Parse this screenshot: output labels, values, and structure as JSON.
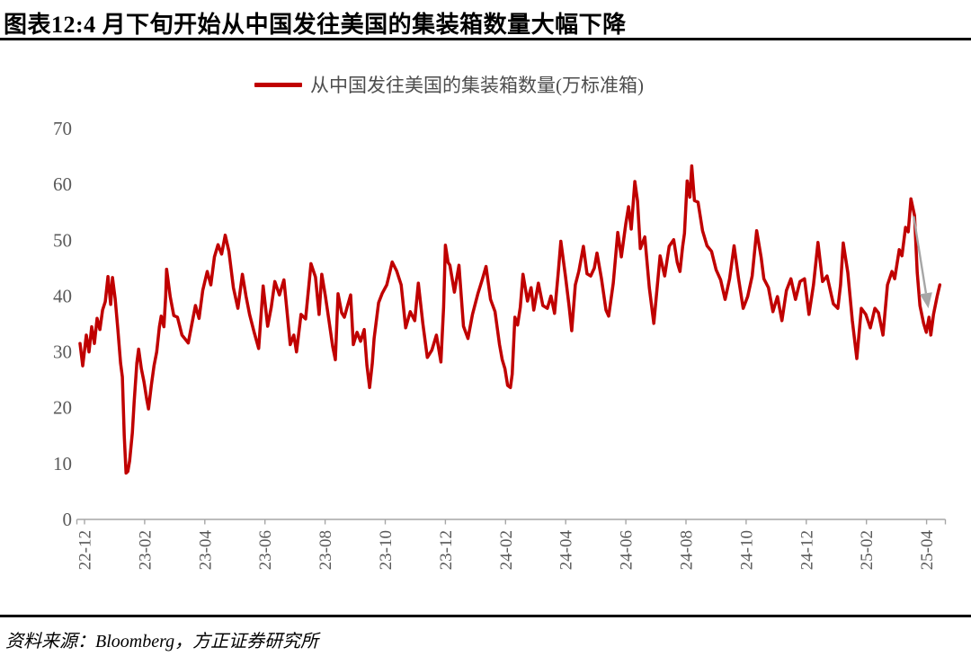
{
  "page": {
    "title": "图表12:4 月下旬开始从中国发往美国的集装箱数量大幅下降",
    "source_note": "资料来源：Bloomberg，方正证券研究所"
  },
  "legend": {
    "series_label": "从中国发往美国的集装箱数量(万标准箱)"
  },
  "colors": {
    "series_red": "#C00000",
    "arrow_gray": "#A6A6A6",
    "axis_line": "#A6A6A6",
    "tick_label": "#595959",
    "title_text": "#000000"
  },
  "chart_data": {
    "type": "line",
    "title": "从中国发往美国的集装箱数量(万标准箱)",
    "grid": false,
    "legend_position": "top-center",
    "x_axis": {
      "unit": "year-month",
      "months_per_tick": 2,
      "tick_labels": [
        "22-12",
        "23-02",
        "23-04",
        "23-06",
        "23-08",
        "23-10",
        "23-12",
        "24-02",
        "24-04",
        "24-06",
        "24-08",
        "24-10",
        "24-12",
        "25-02",
        "25-04"
      ]
    },
    "y_axis": {
      "ticks": [
        0,
        10,
        20,
        30,
        40,
        50,
        60,
        70
      ],
      "range": [
        0,
        70
      ]
    },
    "series": [
      {
        "name": "从中国发往美国的集装箱数量(万标准箱)",
        "color": "#C00000",
        "x_unit": "months_since_2022-12_tick",
        "points": [
          [
            -0.15,
            31.5
          ],
          [
            -0.06,
            27.5
          ],
          [
            0.06,
            33
          ],
          [
            0.15,
            30
          ],
          [
            0.24,
            34.5
          ],
          [
            0.33,
            31.5
          ],
          [
            0.42,
            36
          ],
          [
            0.51,
            34
          ],
          [
            0.6,
            37.5
          ],
          [
            0.69,
            39
          ],
          [
            0.78,
            43.5
          ],
          [
            0.87,
            38.5
          ],
          [
            0.93,
            43.3
          ],
          [
            1.02,
            39.5
          ],
          [
            1.11,
            34
          ],
          [
            1.2,
            28
          ],
          [
            1.26,
            25.5
          ],
          [
            1.32,
            15
          ],
          [
            1.38,
            8.3
          ],
          [
            1.44,
            8.6
          ],
          [
            1.5,
            10.5
          ],
          [
            1.59,
            15.5
          ],
          [
            1.65,
            21
          ],
          [
            1.74,
            28
          ],
          [
            1.8,
            30.5
          ],
          [
            1.89,
            27
          ],
          [
            1.98,
            24.6
          ],
          [
            2.07,
            21.5
          ],
          [
            2.13,
            19.8
          ],
          [
            2.22,
            24
          ],
          [
            2.31,
            27.5
          ],
          [
            2.4,
            30
          ],
          [
            2.49,
            34.5
          ],
          [
            2.55,
            36.4
          ],
          [
            2.64,
            34.5
          ],
          [
            2.7,
            40
          ],
          [
            2.73,
            44.8
          ],
          [
            2.85,
            39.9
          ],
          [
            2.97,
            36.5
          ],
          [
            3.09,
            36.2
          ],
          [
            3.24,
            33
          ],
          [
            3.45,
            31.6
          ],
          [
            3.57,
            35
          ],
          [
            3.69,
            38.3
          ],
          [
            3.81,
            36
          ],
          [
            3.93,
            41
          ],
          [
            4.08,
            44.4
          ],
          [
            4.2,
            42
          ],
          [
            4.32,
            47
          ],
          [
            4.44,
            49.2
          ],
          [
            4.56,
            47.5
          ],
          [
            4.68,
            50.9
          ],
          [
            4.8,
            48
          ],
          [
            4.95,
            41.5
          ],
          [
            5.1,
            37.8
          ],
          [
            5.25,
            43.9
          ],
          [
            5.37,
            40
          ],
          [
            5.49,
            36.7
          ],
          [
            5.64,
            33.5
          ],
          [
            5.79,
            30.6
          ],
          [
            5.94,
            41.8
          ],
          [
            6.09,
            34.6
          ],
          [
            6.21,
            38
          ],
          [
            6.33,
            42.6
          ],
          [
            6.48,
            40.2
          ],
          [
            6.63,
            42.9
          ],
          [
            6.72,
            38
          ],
          [
            6.84,
            31.3
          ],
          [
            6.96,
            33
          ],
          [
            7.05,
            30
          ],
          [
            7.2,
            36.7
          ],
          [
            7.35,
            35.9
          ],
          [
            7.53,
            45.8
          ],
          [
            7.68,
            43.4
          ],
          [
            7.8,
            36.7
          ],
          [
            7.89,
            43.9
          ],
          [
            8.01,
            40
          ],
          [
            8.13,
            35.6
          ],
          [
            8.25,
            31
          ],
          [
            8.34,
            28.6
          ],
          [
            8.43,
            40.4
          ],
          [
            8.55,
            37
          ],
          [
            8.64,
            36.2
          ],
          [
            8.76,
            38.5
          ],
          [
            8.85,
            40.2
          ],
          [
            8.94,
            31.3
          ],
          [
            9.06,
            33.5
          ],
          [
            9.18,
            31.9
          ],
          [
            9.3,
            34
          ],
          [
            9.39,
            27.6
          ],
          [
            9.48,
            23.6
          ],
          [
            9.57,
            28
          ],
          [
            9.63,
            32.4
          ],
          [
            9.78,
            38.8
          ],
          [
            9.9,
            40.5
          ],
          [
            10.05,
            42
          ],
          [
            10.14,
            44
          ],
          [
            10.23,
            46.1
          ],
          [
            10.38,
            44.5
          ],
          [
            10.53,
            42
          ],
          [
            10.68,
            34.3
          ],
          [
            10.83,
            37.2
          ],
          [
            10.98,
            35.6
          ],
          [
            11.1,
            42.3
          ],
          [
            11.25,
            35.1
          ],
          [
            11.4,
            29
          ],
          [
            11.55,
            30.3
          ],
          [
            11.7,
            33
          ],
          [
            11.85,
            28.2
          ],
          [
            11.94,
            38
          ],
          [
            12,
            49.1
          ],
          [
            12.09,
            46
          ],
          [
            12.15,
            45.5
          ],
          [
            12.3,
            40.7
          ],
          [
            12.45,
            45.5
          ],
          [
            12.6,
            34.6
          ],
          [
            12.75,
            32.4
          ],
          [
            12.9,
            36.7
          ],
          [
            13.08,
            40.4
          ],
          [
            13.23,
            43
          ],
          [
            13.35,
            45.3
          ],
          [
            13.5,
            39.4
          ],
          [
            13.65,
            37.2
          ],
          [
            13.8,
            31.3
          ],
          [
            13.89,
            28.6
          ],
          [
            13.98,
            27
          ],
          [
            14.07,
            24
          ],
          [
            14.16,
            23.6
          ],
          [
            14.22,
            26
          ],
          [
            14.31,
            36.2
          ],
          [
            14.4,
            34.8
          ],
          [
            14.49,
            38
          ],
          [
            14.58,
            43.9
          ],
          [
            14.73,
            39.1
          ],
          [
            14.85,
            41.5
          ],
          [
            14.94,
            37.5
          ],
          [
            15.09,
            42.3
          ],
          [
            15.24,
            38.3
          ],
          [
            15.39,
            37.8
          ],
          [
            15.51,
            40
          ],
          [
            15.63,
            36.9
          ],
          [
            15.75,
            44
          ],
          [
            15.84,
            49.8
          ],
          [
            15.99,
            43.6
          ],
          [
            16.11,
            38.3
          ],
          [
            16.2,
            33.8
          ],
          [
            16.32,
            42
          ],
          [
            16.44,
            44.5
          ],
          [
            16.59,
            48.9
          ],
          [
            16.71,
            44
          ],
          [
            16.83,
            43.6
          ],
          [
            16.95,
            45
          ],
          [
            17.04,
            47.7
          ],
          [
            17.19,
            43.1
          ],
          [
            17.34,
            37.5
          ],
          [
            17.43,
            36.4
          ],
          [
            17.58,
            42.3
          ],
          [
            17.73,
            51.4
          ],
          [
            17.85,
            47
          ],
          [
            18,
            53
          ],
          [
            18.09,
            56
          ],
          [
            18.18,
            52
          ],
          [
            18.3,
            60.5
          ],
          [
            18.39,
            57
          ],
          [
            18.48,
            48.5
          ],
          [
            18.63,
            50.6
          ],
          [
            18.78,
            41.5
          ],
          [
            18.93,
            35.1
          ],
          [
            19.05,
            42
          ],
          [
            19.14,
            47.2
          ],
          [
            19.29,
            43.6
          ],
          [
            19.44,
            48.9
          ],
          [
            19.59,
            50.1
          ],
          [
            19.71,
            46
          ],
          [
            19.8,
            44.4
          ],
          [
            19.89,
            48.9
          ],
          [
            19.95,
            51.2
          ],
          [
            20.04,
            60.6
          ],
          [
            20.13,
            57.7
          ],
          [
            20.19,
            63.3
          ],
          [
            20.28,
            57.1
          ],
          [
            20.4,
            56.8
          ],
          [
            20.55,
            51.7
          ],
          [
            20.7,
            49
          ],
          [
            20.85,
            48
          ],
          [
            21,
            44.7
          ],
          [
            21.15,
            42.9
          ],
          [
            21.3,
            39.4
          ],
          [
            21.45,
            43.1
          ],
          [
            21.6,
            49
          ],
          [
            21.75,
            43.1
          ],
          [
            21.9,
            37.8
          ],
          [
            22.05,
            39.9
          ],
          [
            22.2,
            43.6
          ],
          [
            22.35,
            51.7
          ],
          [
            22.5,
            46.9
          ],
          [
            22.59,
            43.1
          ],
          [
            22.74,
            41.5
          ],
          [
            22.89,
            37.2
          ],
          [
            23.04,
            39.9
          ],
          [
            23.19,
            35.6
          ],
          [
            23.34,
            41
          ],
          [
            23.49,
            43.1
          ],
          [
            23.64,
            39.4
          ],
          [
            23.79,
            42.6
          ],
          [
            23.94,
            43.1
          ],
          [
            24.09,
            36.7
          ],
          [
            24.24,
            42
          ],
          [
            24.39,
            49.6
          ],
          [
            24.54,
            42.6
          ],
          [
            24.69,
            43.6
          ],
          [
            24.84,
            40
          ],
          [
            24.9,
            38.6
          ],
          [
            25.05,
            37.8
          ],
          [
            25.14,
            42
          ],
          [
            25.23,
            49.5
          ],
          [
            25.38,
            44.2
          ],
          [
            25.53,
            35.6
          ],
          [
            25.68,
            28.8
          ],
          [
            25.83,
            37.8
          ],
          [
            25.98,
            36.7
          ],
          [
            26.13,
            34.3
          ],
          [
            26.28,
            37.8
          ],
          [
            26.4,
            37
          ],
          [
            26.55,
            33
          ],
          [
            26.7,
            42
          ],
          [
            26.85,
            44.4
          ],
          [
            26.94,
            43.1
          ],
          [
            27.09,
            48.3
          ],
          [
            27.18,
            47.2
          ],
          [
            27.3,
            52.3
          ],
          [
            27.39,
            51.5
          ],
          [
            27.48,
            57.4
          ],
          [
            27.6,
            54.4
          ],
          [
            27.69,
            44.2
          ],
          [
            27.78,
            38.3
          ],
          [
            27.9,
            35.1
          ],
          [
            27.99,
            33.5
          ],
          [
            28.08,
            36.2
          ],
          [
            28.14,
            33
          ],
          [
            28.23,
            36.7
          ],
          [
            28.35,
            39.9
          ],
          [
            28.44,
            42
          ]
        ]
      }
    ],
    "annotation_arrow": {
      "from": [
        27.57,
        54.3
      ],
      "to": [
        28.06,
        37.8
      ],
      "color": "#A6A6A6"
    }
  }
}
